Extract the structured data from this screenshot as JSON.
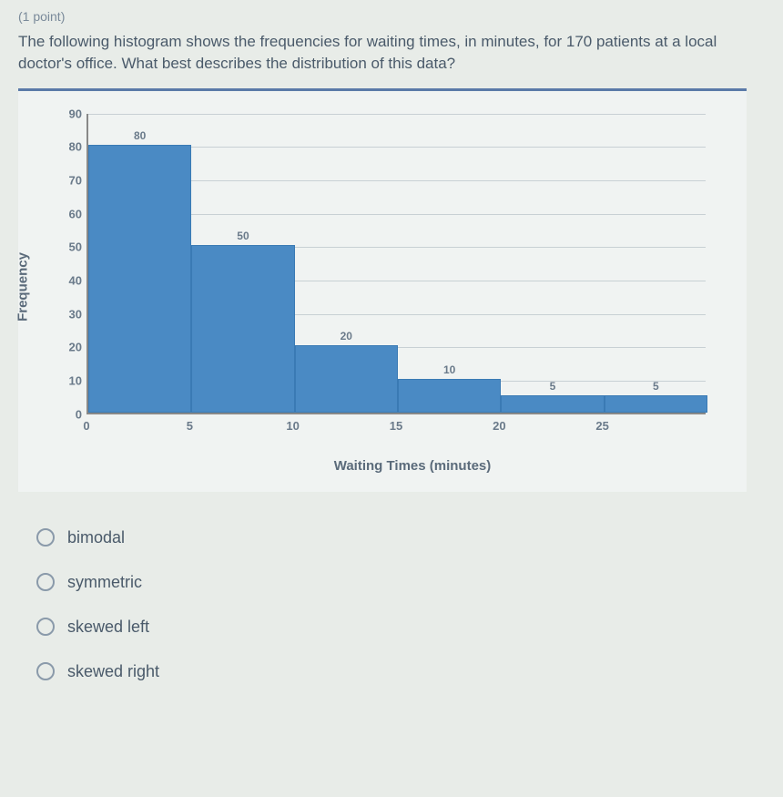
{
  "header_fragment": "(1 point)",
  "question_text": "The following histogram shows the frequencies for waiting times, in minutes, for 170 patients at a local doctor's office. What best describes the distribution of this data?",
  "histogram": {
    "type": "histogram",
    "y_label": "Frequency",
    "x_label": "Waiting Times (minutes)",
    "ylim": [
      0,
      90
    ],
    "ytick_step": 10,
    "y_ticks": [
      0,
      10,
      20,
      30,
      40,
      50,
      60,
      70,
      80,
      90
    ],
    "x_ticks": [
      0,
      5,
      10,
      15,
      20,
      25
    ],
    "bins": [
      {
        "start": 0,
        "end": 5,
        "value": 80,
        "label": "80"
      },
      {
        "start": 5,
        "end": 10,
        "value": 50,
        "label": "50"
      },
      {
        "start": 10,
        "end": 15,
        "value": 20,
        "label": "20"
      },
      {
        "start": 15,
        "end": 20,
        "value": 10,
        "label": "10"
      },
      {
        "start": 20,
        "end": 25,
        "value": 5,
        "label": "5"
      },
      {
        "start": 25,
        "end": 30,
        "value": 5,
        "label": "5"
      }
    ],
    "bar_color": "#4a8ac4",
    "bar_border_color": "#3a7ab4",
    "background_color": "#f0f3f2",
    "grid_color": "#c8d0d4",
    "axis_color": "#888888",
    "label_fontsize": 15,
    "tick_fontsize": 13
  },
  "options": [
    {
      "id": "bimodal",
      "label": "bimodal"
    },
    {
      "id": "symmetric",
      "label": "symmetric"
    },
    {
      "id": "skewed-left",
      "label": "skewed left"
    },
    {
      "id": "skewed-right",
      "label": "skewed right"
    }
  ]
}
